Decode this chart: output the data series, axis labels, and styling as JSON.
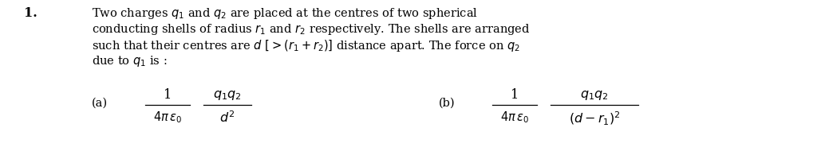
{
  "bg_color": "#ffffff",
  "text_color": "#000000",
  "figsize": [
    10.24,
    1.85
  ],
  "dpi": 100,
  "number": "1.",
  "line1": "Two charges $q_1$ and $q_2$ are placed at the centres of two spherical",
  "line2": "conducting shells of radius $r_1$ and $r_2$ respectively. The shells are arranged",
  "line3": "such that their centres are $d$ $[>(r_1 + r_2)]$ distance apart. The force on $q_2$",
  "line4": "due to $q_1$ is :",
  "label_a": "(a)",
  "label_b": "(b)",
  "font_size_main": 10.5,
  "font_size_formula": 11.5
}
